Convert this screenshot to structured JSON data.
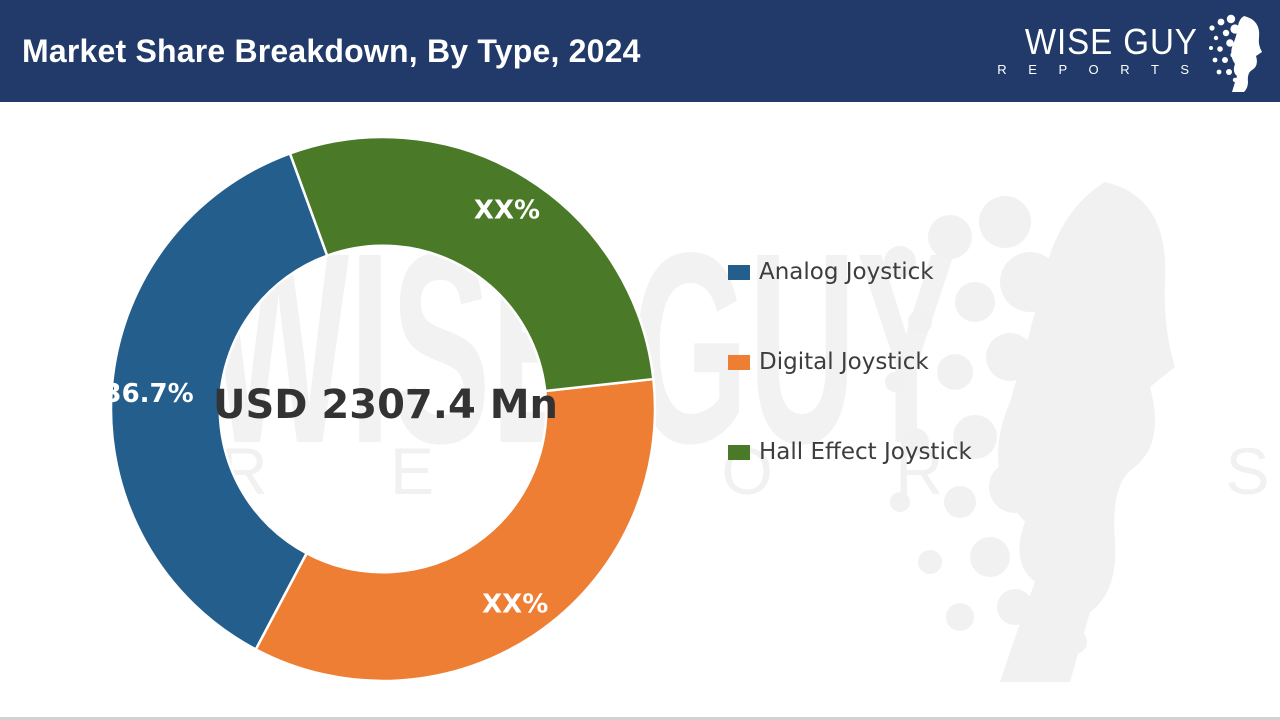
{
  "header": {
    "title": "Market Share Breakdown, By Type, 2024",
    "logo": {
      "line1": "WISE GUY",
      "line2": "R E P O R T S"
    }
  },
  "watermark": {
    "line1": "WISE GUY",
    "line2": "R E P O R T S"
  },
  "chart_data": {
    "type": "pie",
    "subtype": "donut",
    "title": "Market Share Breakdown, By Type, 2024",
    "center_label": "USD 2307.4 Mn",
    "start_angle_deg": 110,
    "direction": "counterclockwise",
    "inner_radius_ratio": 0.6,
    "legend_position": "right",
    "segments": [
      {
        "label": "Analog Joystick",
        "display_value": "36.7%",
        "value_pct": 36.7,
        "color": "#245e8c"
      },
      {
        "label": "Digital Joystick",
        "display_value": "XX%",
        "value_pct": 34.5,
        "color": "#ee7e34"
      },
      {
        "label": "Hall Effect Joystick",
        "display_value": "XX%",
        "value_pct": 28.8,
        "color": "#4a7a28"
      }
    ]
  },
  "colors": {
    "header_background": "#213a69",
    "header_text": "#ffffff",
    "legend_text": "#3d3d3d",
    "center_label_text": "#333333",
    "watermark": "#f2f2f2",
    "segment_divider": "#ffffff"
  }
}
